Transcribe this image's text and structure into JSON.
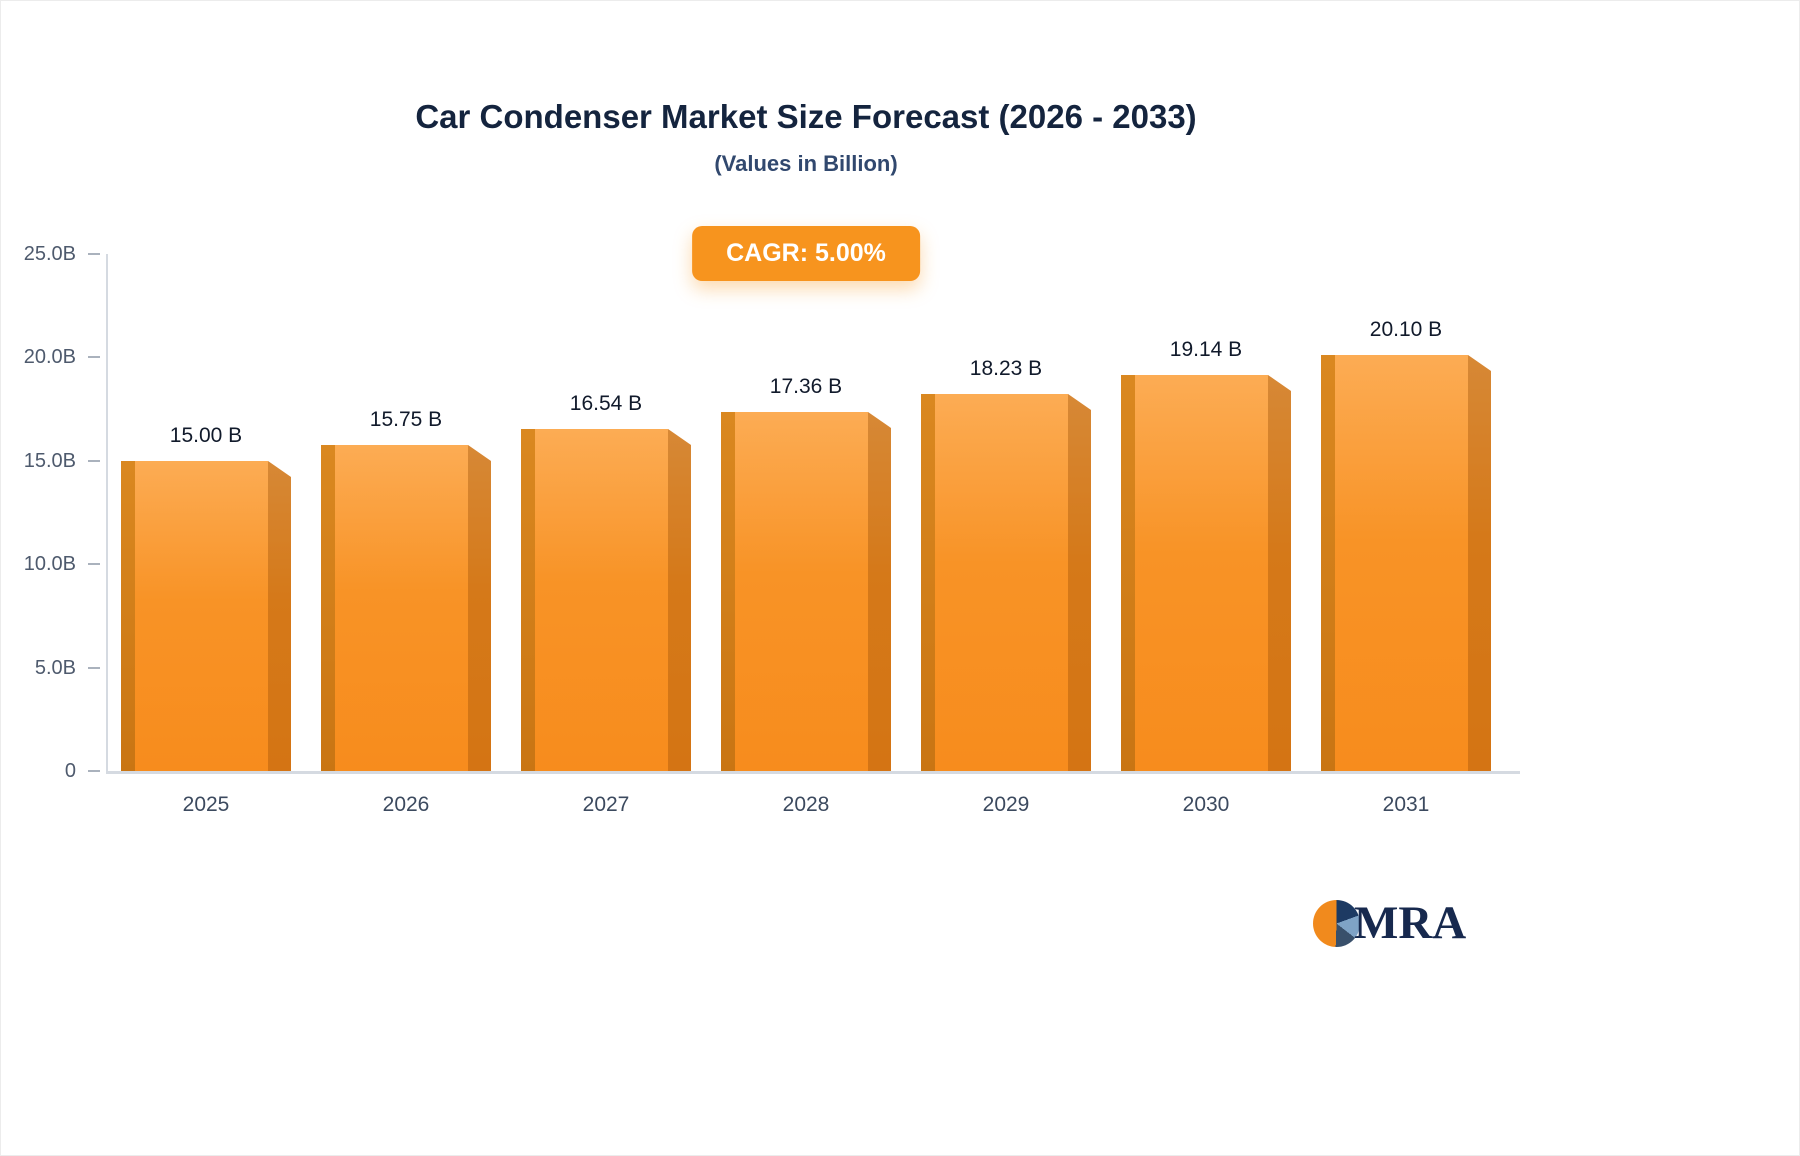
{
  "chart_data": {
    "type": "bar",
    "title": "Car Condenser Market Size Forecast (2026 - 2033)",
    "subtitle": "(Values in Billion)",
    "cagr_label": "CAGR: 5.00%",
    "categories": [
      "2025",
      "2026",
      "2027",
      "2028",
      "2029",
      "2030",
      "2031"
    ],
    "values": [
      15.0,
      15.75,
      16.54,
      17.36,
      18.23,
      19.14,
      20.1
    ],
    "value_labels": [
      "15.00 B",
      "15.75 B",
      "16.54 B",
      "17.36 B",
      "18.23 B",
      "19.14 B",
      "20.10 B"
    ],
    "ylim": [
      0,
      25
    ],
    "yticks": [
      0,
      5,
      10,
      15,
      20,
      25
    ],
    "ytick_labels": [
      "0",
      "5.0B",
      "10.0B",
      "15.0B",
      "20.0B",
      "25.0B"
    ],
    "xlabel": "",
    "ylabel": "",
    "grid": false,
    "legend": false,
    "colors": {
      "bar_main": "#f7941e",
      "bar_light": "#fcac54",
      "bar_side_dark": "#c97513",
      "badge_background": "#f7941e",
      "badge_text": "#ffffff",
      "title_text": "#14243e",
      "axis_line": "#d5dae1"
    }
  },
  "logo": {
    "text": "MRA"
  }
}
